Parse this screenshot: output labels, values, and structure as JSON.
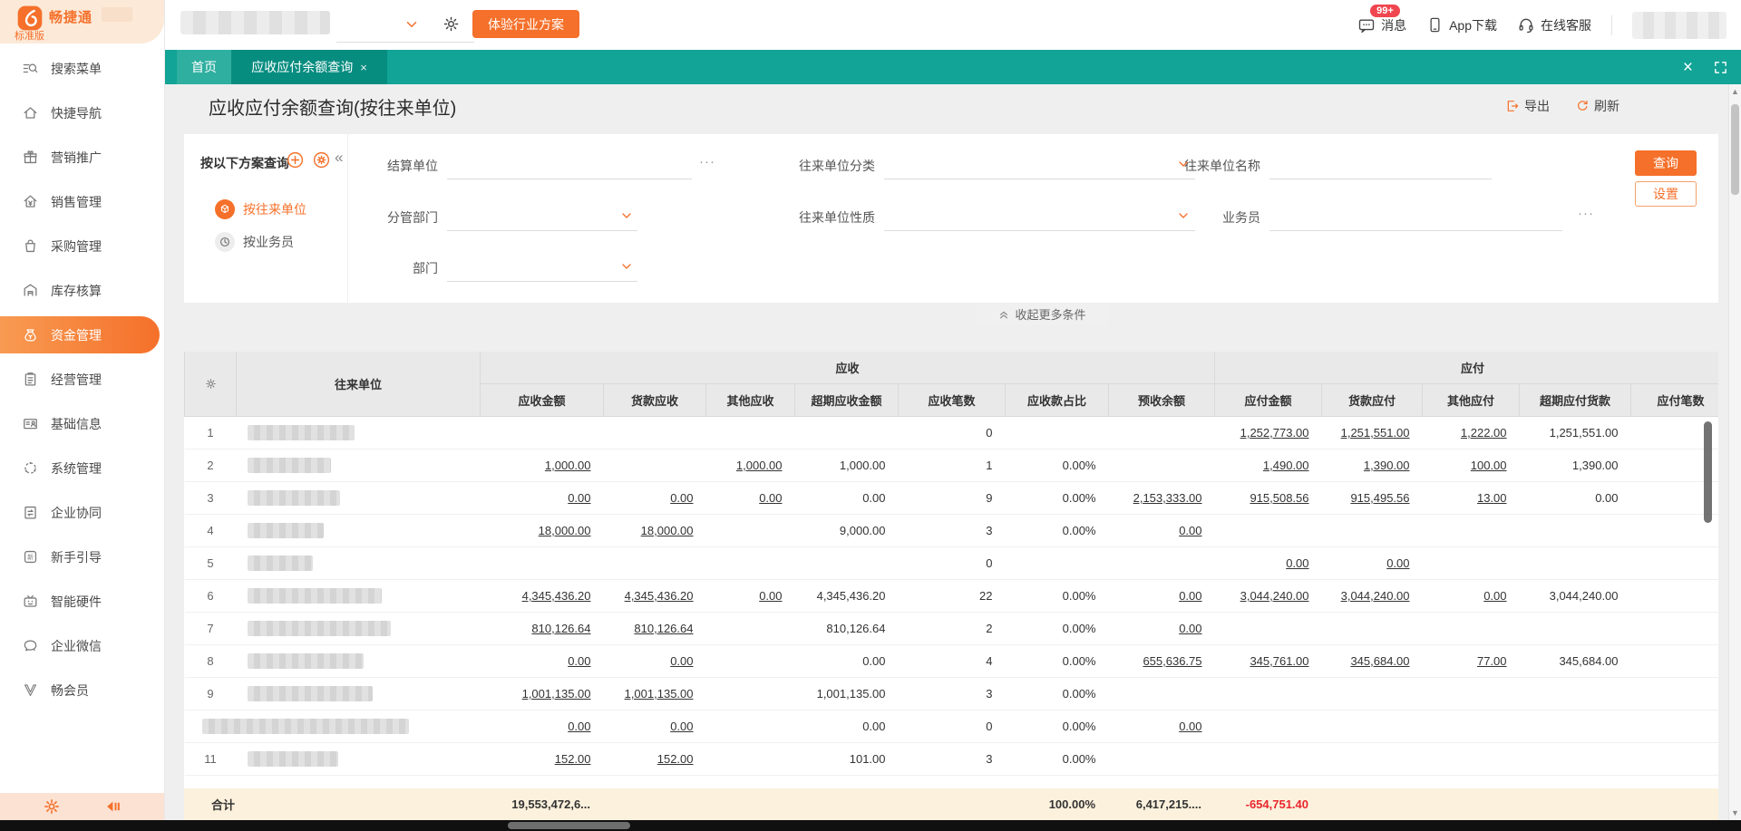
{
  "brand": {
    "name": "畅捷通",
    "edition": "标准版"
  },
  "accent_color": "#F5702A",
  "teal_color": "#12A496",
  "topbar": {
    "cta": "体验行业方案",
    "messages": "消息",
    "badge": "99+",
    "app_download": "App下载",
    "support": "在线客服"
  },
  "tabs": {
    "home": "首页",
    "active_label": "应收应付余额查询"
  },
  "icons": {
    "close": "×",
    "collapse_panel": "«",
    "dots": "···"
  },
  "page": {
    "title": "应收应付余额查询(按往来单位)",
    "export_label": "导出",
    "refresh_label": "刷新"
  },
  "sidebar": {
    "items": [
      {
        "label": "搜索菜单"
      },
      {
        "label": "快捷导航"
      },
      {
        "label": "营销推广"
      },
      {
        "label": "销售管理"
      },
      {
        "label": "采购管理"
      },
      {
        "label": "库存核算"
      },
      {
        "label": "资金管理"
      },
      {
        "label": "经营管理"
      },
      {
        "label": "基础信息"
      },
      {
        "label": "系统管理"
      },
      {
        "label": "企业协同"
      },
      {
        "label": "新手引导"
      },
      {
        "label": "智能硬件"
      },
      {
        "label": "企业微信"
      },
      {
        "label": "畅会员"
      }
    ]
  },
  "filters": {
    "panel_title": "按以下方案查询",
    "schemes": [
      {
        "label": "按往来单位"
      },
      {
        "label": "按业务员"
      }
    ],
    "fields": [
      {
        "label": "结算单位"
      },
      {
        "label": "往来单位分类"
      },
      {
        "label": "往来单位名称"
      },
      {
        "label": "分管部门"
      },
      {
        "label": "往来单位性质"
      },
      {
        "label": "业务员"
      },
      {
        "label": "部门"
      }
    ],
    "search_label": "查询",
    "settings_label": "设置",
    "collapse_label": "收起更多条件"
  },
  "table": {
    "name_col": "往来单位",
    "groups": [
      {
        "label": "应收",
        "span": 7
      },
      {
        "label": "应付",
        "span": 5
      }
    ],
    "columns": [
      "应收金额",
      "货款应收",
      "其他应收",
      "超期应收金额",
      "应收笔数",
      "应收款占比",
      "预收余额",
      "应付金额",
      "货款应付",
      "其他应付",
      "超期应付货款",
      "应付笔数"
    ],
    "rows": [
      {
        "num": "1",
        "blur": 118,
        "cells": [
          "",
          "",
          "",
          "",
          "0",
          "",
          "",
          {
            "t": "1,252,773.00",
            "u": 1
          },
          {
            "t": "1,251,551.00",
            "u": 1
          },
          {
            "t": "1,222.00",
            "u": 1
          },
          "1,251,551.00",
          ""
        ]
      },
      {
        "num": "2",
        "blur": 92,
        "cells": [
          {
            "t": "1,000.00",
            "u": 1
          },
          "",
          {
            "t": "1,000.00",
            "u": 1
          },
          "1,000.00",
          "1",
          "0.00%",
          "",
          {
            "t": "1,490.00",
            "u": 1
          },
          {
            "t": "1,390.00",
            "u": 1
          },
          {
            "t": "100.00",
            "u": 1
          },
          "1,390.00",
          ""
        ]
      },
      {
        "num": "3",
        "blur": 102,
        "cells": [
          {
            "t": "0.00",
            "u": 1
          },
          {
            "t": "0.00",
            "u": 1
          },
          {
            "t": "0.00",
            "u": 1
          },
          "0.00",
          "9",
          "0.00%",
          {
            "t": "2,153,333.00",
            "u": 1
          },
          {
            "t": "915,508.56",
            "u": 1
          },
          {
            "t": "915,495.56",
            "u": 1
          },
          {
            "t": "13.00",
            "u": 1
          },
          "0.00",
          ""
        ]
      },
      {
        "num": "4",
        "blur": 84,
        "cells": [
          {
            "t": "18,000.00",
            "u": 1
          },
          {
            "t": "18,000.00",
            "u": 1
          },
          "",
          "9,000.00",
          "3",
          "0.00%",
          {
            "t": "0.00",
            "u": 1
          },
          "",
          "",
          "",
          "",
          ""
        ]
      },
      {
        "num": "5",
        "blur": 72,
        "cells": [
          "",
          "",
          "",
          "",
          "0",
          "",
          "",
          {
            "t": "0.00",
            "u": 1
          },
          {
            "t": "0.00",
            "u": 1
          },
          "",
          "",
          ""
        ]
      },
      {
        "num": "6",
        "blur": 148,
        "cells": [
          {
            "t": "4,345,436.20",
            "u": 1
          },
          {
            "t": "4,345,436.20",
            "u": 1
          },
          {
            "t": "0.00",
            "u": 1
          },
          "4,345,436.20",
          "22",
          "0.00%",
          {
            "t": "0.00",
            "u": 1
          },
          {
            "t": "3,044,240.00",
            "u": 1
          },
          {
            "t": "3,044,240.00",
            "u": 1
          },
          {
            "t": "0.00",
            "u": 1
          },
          "3,044,240.00",
          ""
        ]
      },
      {
        "num": "7",
        "blur": 158,
        "cells": [
          {
            "t": "810,126.64",
            "u": 1
          },
          {
            "t": "810,126.64",
            "u": 1
          },
          "",
          "810,126.64",
          "2",
          "0.00%",
          {
            "t": "0.00",
            "u": 1
          },
          "",
          "",
          "",
          "",
          ""
        ]
      },
      {
        "num": "8",
        "blur": 128,
        "cells": [
          {
            "t": "0.00",
            "u": 1
          },
          {
            "t": "0.00",
            "u": 1
          },
          "",
          "0.00",
          "4",
          "0.00%",
          {
            "t": "655,636.75",
            "u": 1
          },
          {
            "t": "345,761.00",
            "u": 1
          },
          {
            "t": "345,684.00",
            "u": 1
          },
          {
            "t": "77.00",
            "u": 1
          },
          "345,684.00",
          ""
        ]
      },
      {
        "num": "9",
        "blur": 138,
        "cells": [
          {
            "t": "1,001,135.00",
            "u": 1
          },
          {
            "t": "1,001,135.00",
            "u": 1
          },
          "",
          "1,001,135.00",
          "3",
          "0.00%",
          "",
          "",
          "",
          "",
          "",
          ""
        ]
      },
      {
        "num": "",
        "blur": 190,
        "wide": 1,
        "cells": [
          {
            "t": "0.00",
            "u": 1
          },
          {
            "t": "0.00",
            "u": 1
          },
          "",
          "0.00",
          "0",
          "0.00%",
          {
            "t": "0.00",
            "u": 1
          },
          "",
          "",
          "",
          "",
          ""
        ]
      },
      {
        "num": "11",
        "blur": 100,
        "cells": [
          {
            "t": "152.00",
            "u": 1
          },
          {
            "t": "152.00",
            "u": 1
          },
          "",
          "101.00",
          "3",
          "0.00%",
          "",
          "",
          "",
          "",
          "",
          ""
        ]
      }
    ],
    "total": {
      "label": "合计",
      "cells": [
        "19,553,472,6...",
        "",
        "",
        "",
        "",
        "100.00%",
        "6,417,215....",
        {
          "t": "-654,751.40",
          "neg": 1
        },
        "",
        "",
        "",
        ""
      ]
    }
  }
}
